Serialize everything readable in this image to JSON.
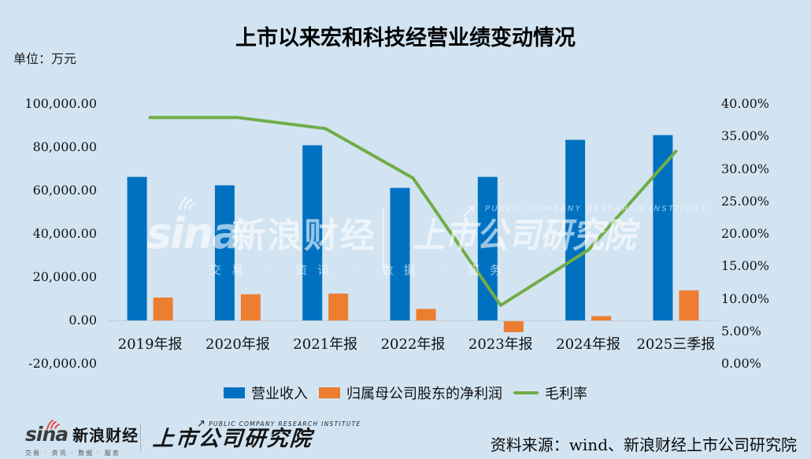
{
  "colors": {
    "page_background": "#d2e4f2",
    "axis_line": "#c4cdd6",
    "revenue_bar": "#0071c1",
    "net_profit_bar": "#ed7d31",
    "gross_margin_line": "#70ad47"
  },
  "chart_data": {
    "type": "combo-bar-line",
    "title": "上市以来宏和科技经营业绩变动情况",
    "unit_label": "单位：万元",
    "categories": [
      "2019年报",
      "2020年报",
      "2021年报",
      "2022年报",
      "2023年报",
      "2024年报",
      "2025三季报"
    ],
    "series": [
      {
        "id": "revenue",
        "name": "营业收入",
        "chart": "bar",
        "axis": "left",
        "color": "#0071c1",
        "values": [
          66300,
          62400,
          80900,
          61200,
          66300,
          83400,
          85600
        ]
      },
      {
        "id": "net-profit",
        "name": "归属母公司股东的净利润",
        "chart": "bar",
        "axis": "left",
        "color": "#ed7d31",
        "values": [
          10600,
          12100,
          12400,
          5300,
          -5400,
          2000,
          13900
        ]
      },
      {
        "id": "gross-margin",
        "name": "毛利率",
        "chart": "line",
        "axis": "right",
        "color": "#70ad47",
        "values": [
          37.9,
          37.9,
          36.2,
          28.6,
          9.0,
          17.5,
          32.7
        ]
      }
    ],
    "left_axis": {
      "min": -20000,
      "max": 100000,
      "ticks": [
        {
          "label": "100,000.00",
          "value": 100000
        },
        {
          "label": "80,000.00",
          "value": 80000
        },
        {
          "label": "60,000.00",
          "value": 60000
        },
        {
          "label": "40,000.00",
          "value": 40000
        },
        {
          "label": "20,000.00",
          "value": 20000
        },
        {
          "label": "0.00",
          "value": 0
        },
        {
          "label": "-20,000.00",
          "value": -20000
        }
      ]
    },
    "right_axis": {
      "min": 0,
      "max": 40,
      "ticks": [
        {
          "label": "40.00%",
          "value": 40
        },
        {
          "label": "35.00%",
          "value": 35
        },
        {
          "label": "30.00%",
          "value": 30
        },
        {
          "label": "25.00%",
          "value": 25
        },
        {
          "label": "20.00%",
          "value": 20
        },
        {
          "label": "15.00%",
          "value": 15
        },
        {
          "label": "10.00%",
          "value": 10
        },
        {
          "label": "5.00%",
          "value": 5
        },
        {
          "label": "0.00%",
          "value": 0
        }
      ]
    },
    "grid": false,
    "legend_position": "bottom"
  },
  "watermark": {
    "sina_logo_text": "sina",
    "brand_text": "新浪财经",
    "tagline": "交易 · 资讯 · 数据 · 服务",
    "institute_caption": "PUBLIC COMPANY RESEARCH INSTITUTE",
    "institute_arrow": "↗",
    "institute_text": "上市公司研究院"
  },
  "footer": {
    "sina_logo_text": "sina",
    "sina_brand": "新浪财经",
    "sina_tagline": "交易 · 资讯 · 数据 · 服务",
    "institute_caption": "PUBLIC COMPANY RESEARCH INSTITUTE",
    "institute_arrow": "↗",
    "institute_name": "上市公司研究院",
    "source_text": "资料来源：wind、新浪财经上市公司研究院"
  }
}
